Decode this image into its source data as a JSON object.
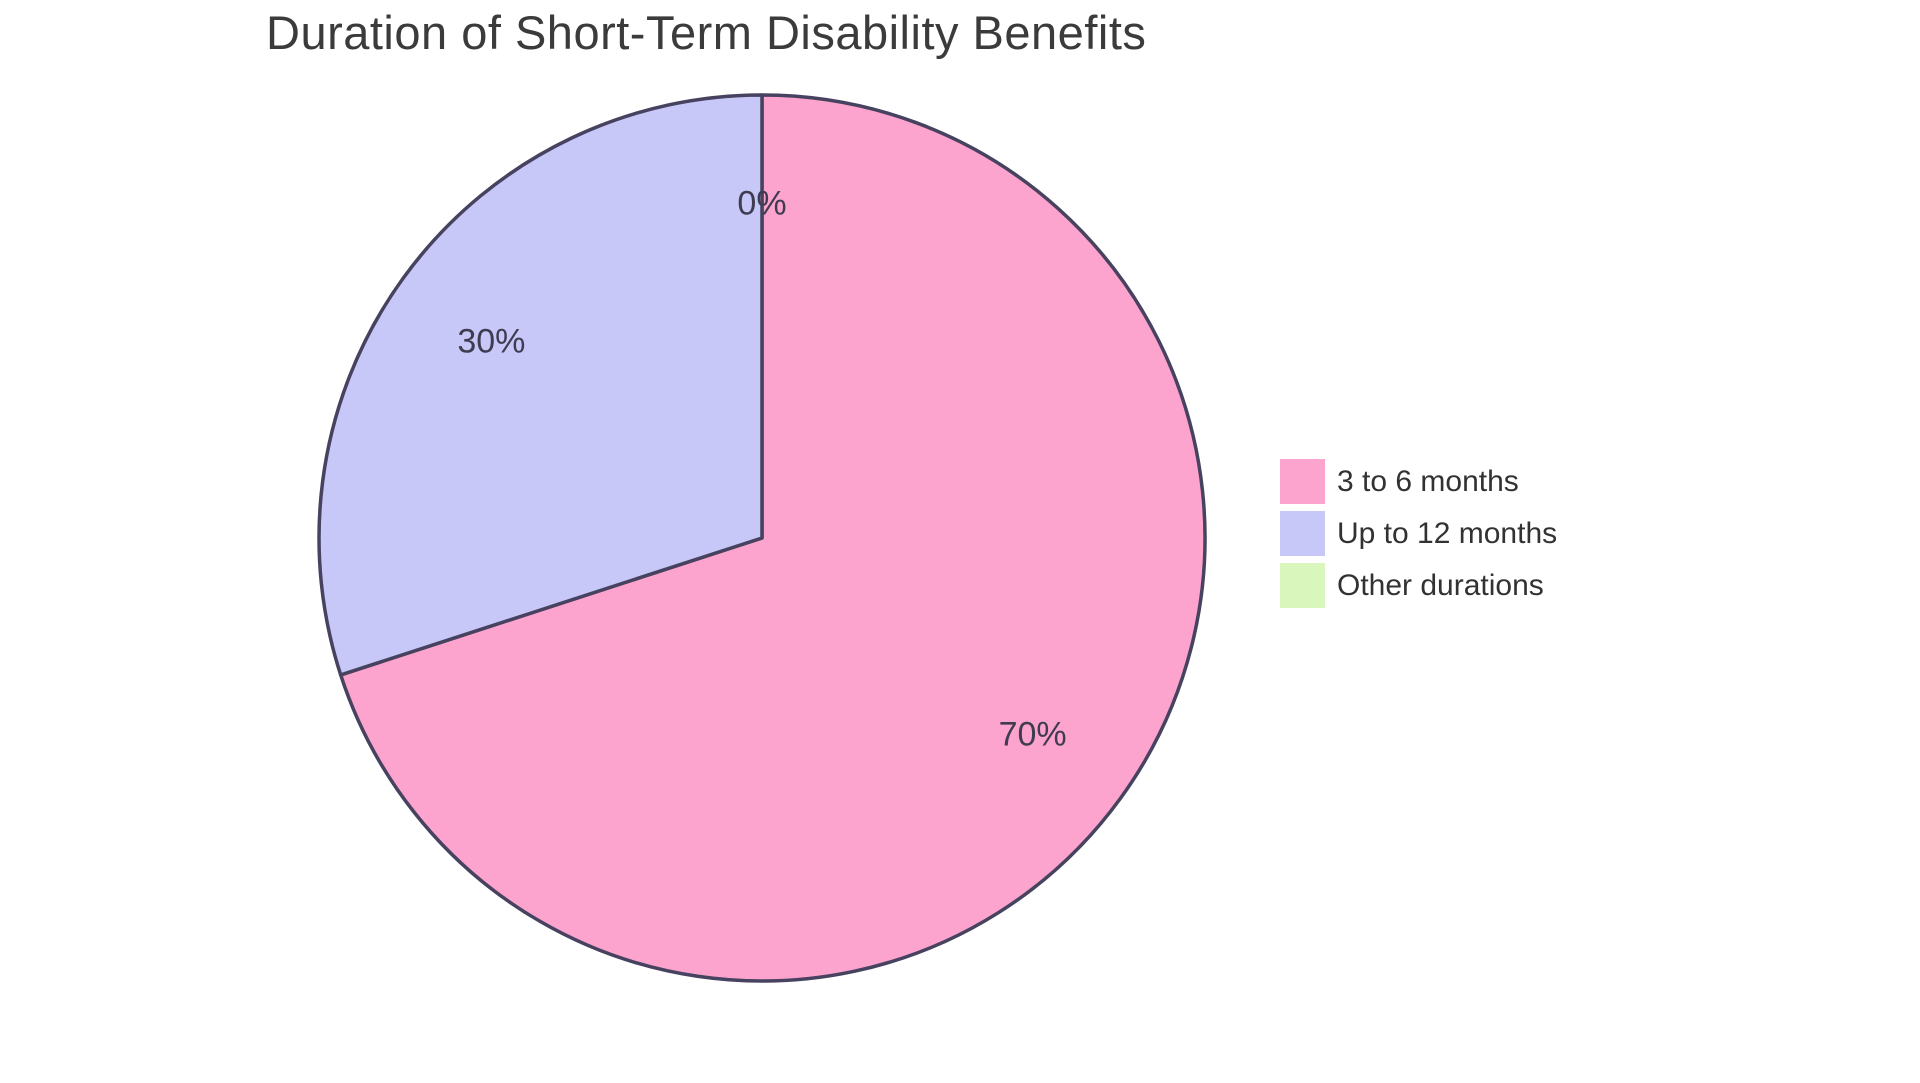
{
  "chart_data": {
    "type": "pie",
    "title": "Duration of Short-Term Disability Benefits",
    "legend_position": "right",
    "direction": "clockwise",
    "start_angle": "12-o'clock",
    "outline_color": "#46425f",
    "background_color": "#ffffff",
    "slices": [
      {
        "label": "3 to 6 months",
        "value": 70,
        "pct_label": "70%",
        "color": "#fca4ce"
      },
      {
        "label": "Up to 12 months",
        "value": 30,
        "pct_label": "30%",
        "color": "#c8c8f8"
      },
      {
        "label": "Other durations",
        "value": 0,
        "pct_label": "0%",
        "color": "#d9f7bd"
      }
    ]
  }
}
